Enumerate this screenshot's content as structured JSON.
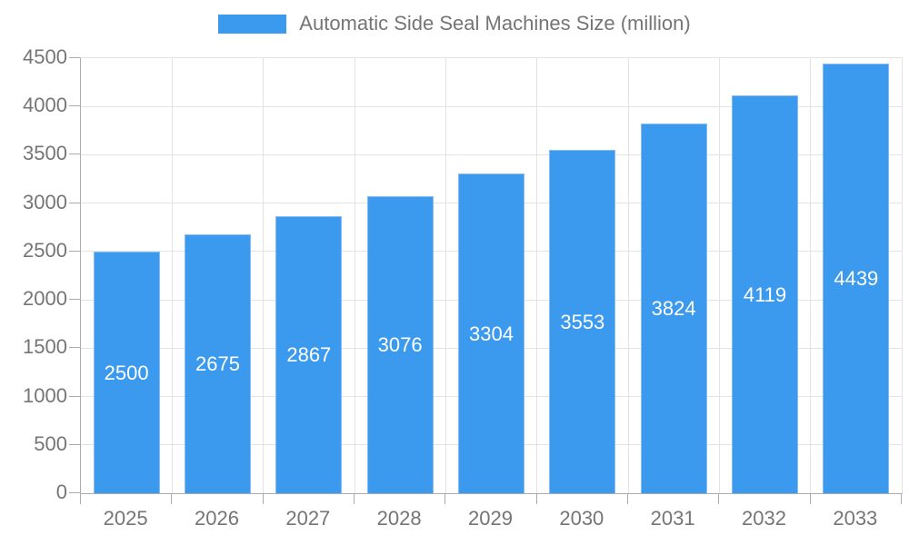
{
  "legend": {
    "label": "Automatic Side Seal Machines Size (million)"
  },
  "colors": {
    "bar_fill": "#3B99EE",
    "bar_border": "#84BCF3",
    "gridline": "#E3E3E3",
    "axis_line": "#ABABAB",
    "axis_text": "#757575",
    "bar_label_text": "#FFFFFF",
    "background": "#FFFFFF"
  },
  "chart_data": {
    "type": "bar",
    "title": "Automatic Side Seal Machines Size (million)",
    "categories": [
      "2025",
      "2026",
      "2027",
      "2028",
      "2029",
      "2030",
      "2031",
      "2032",
      "2033"
    ],
    "series": [
      {
        "name": "Automatic Side Seal Machines Size (million)",
        "values": [
          2500,
          2675,
          2867,
          3076,
          3304,
          3553,
          3824,
          4119,
          4439
        ]
      }
    ],
    "xlabel": "",
    "ylabel": "",
    "ylim": [
      0,
      4500
    ],
    "ytick_step": 500,
    "yticks": [
      0,
      500,
      1000,
      1500,
      2000,
      2500,
      3000,
      3500,
      4000,
      4500
    ],
    "grid": true,
    "legend_position": "top-center",
    "value_label_position": "inside-middle"
  }
}
